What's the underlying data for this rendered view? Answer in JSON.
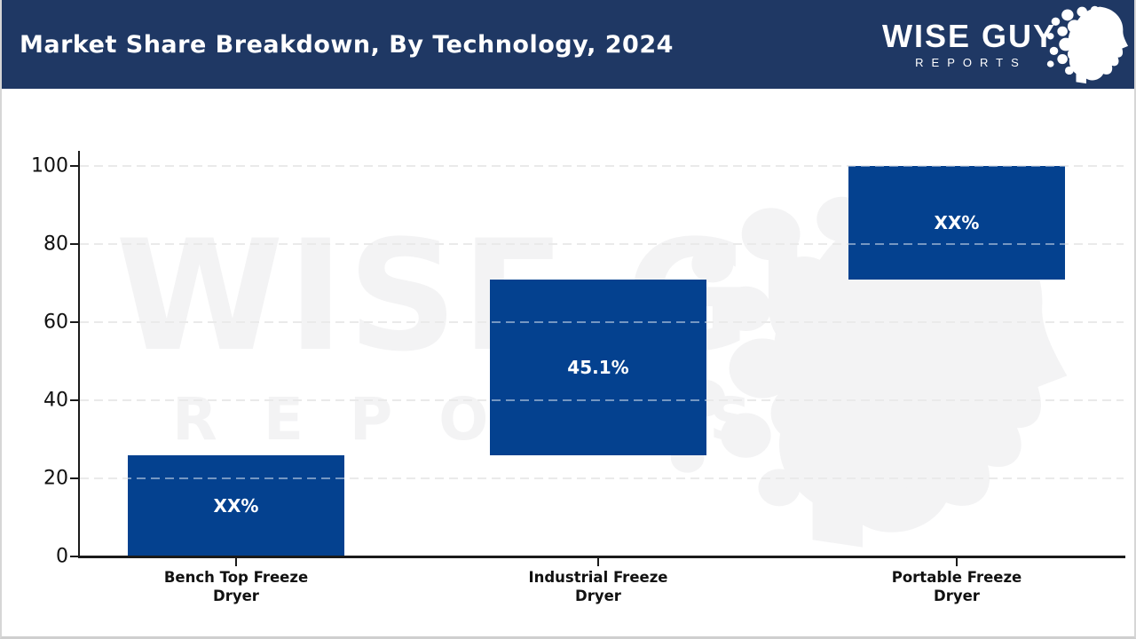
{
  "header": {
    "title": "Market Share Breakdown, By Technology, 2024",
    "logo": {
      "wordmark": "WISE GUY",
      "subtext": "REPORTS",
      "icon": "dotted-head-profile-icon"
    }
  },
  "watermark": {
    "line1": "WISE GUY",
    "line2": "REPORTS",
    "icon": "dotted-head-profile-watermark"
  },
  "chart_data": {
    "type": "bar",
    "subtype": "stacked-waterfall",
    "title": "Market Share Breakdown, By Technology, 2024",
    "categories": [
      "Bench Top Freeze Dryer",
      "Industrial Freeze Dryer",
      "Portable Freeze Dryer"
    ],
    "category_label_lines": [
      [
        "Bench Top Freeze",
        "Dryer"
      ],
      [
        "Industrial Freeze",
        "Dryer"
      ],
      [
        "Portable Freeze",
        "Dryer"
      ]
    ],
    "bars": [
      {
        "category": "Bench Top Freeze Dryer",
        "label": "XX%",
        "start": 0,
        "end": 25.9
      },
      {
        "category": "Industrial Freeze Dryer",
        "label": "45.1%",
        "start": 25.8,
        "end": 70.9
      },
      {
        "category": "Portable Freeze Dryer",
        "label": "XX%",
        "start": 70.9,
        "end": 100
      }
    ],
    "xlabel": "",
    "ylabel": "",
    "ylim": [
      0,
      104
    ],
    "yticks": [
      0,
      20,
      40,
      60,
      80,
      100
    ],
    "grid": "horizontal-dashed",
    "legend": "none",
    "colors": {
      "bar": "#04418F",
      "bar_label": "#FFFFFF",
      "grid": "#D9D9D9",
      "axis": "#1A1A1A",
      "header_bg": "#1F3864",
      "header_text": "#FFFFFF",
      "watermark": "#F3F3F4"
    }
  }
}
